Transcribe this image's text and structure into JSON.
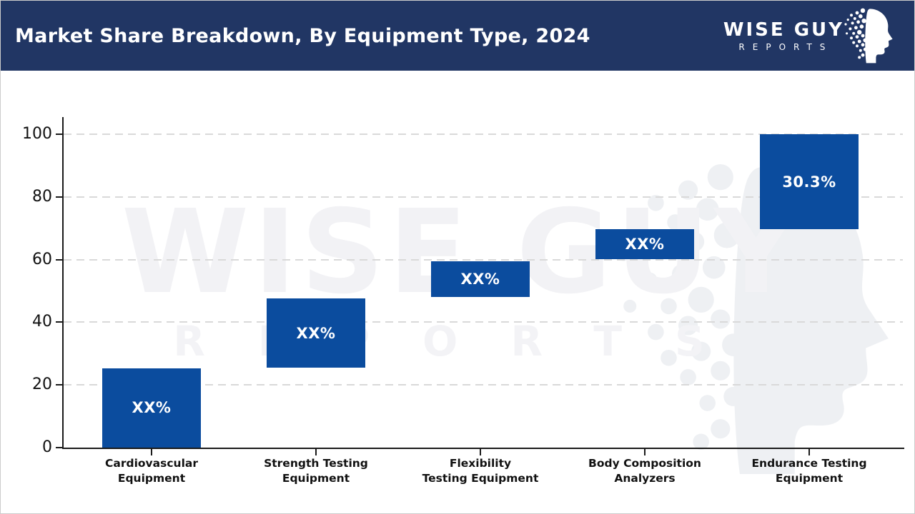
{
  "header": {
    "title": "Market Share Breakdown, By Equipment Type, 2024",
    "brand": {
      "line1": "WISE GUY",
      "line2": "REPORTS"
    }
  },
  "watermark": {
    "line1": "WISE GUY",
    "line2": "REPORTS"
  },
  "colors": {
    "header_bg": "#213664",
    "bar": "#0b4c9e",
    "bar_label_text": "#ffffff",
    "gridline": "#d9d9d9",
    "axis": "#1a1a1a",
    "watermark": "#f2f2f5"
  },
  "chart_data": {
    "type": "bar",
    "variant": "waterfall",
    "title": "Market Share Breakdown, By Equipment Type, 2024",
    "categories": [
      "Cardiovascular Equipment",
      "Strength Testing Equipment",
      "Flexibility Testing Equipment",
      "Body Composition Analyzers",
      "Endurance Testing Equipment"
    ],
    "category_label_lines": [
      "Cardiovascular\nEquipment",
      "Strength Testing\nEquipment",
      "Flexibility\nTesting Equipment",
      "Body Composition\nAnalyzers",
      "Endurance Testing\nEquipment"
    ],
    "segments": [
      {
        "category": "Cardiovascular Equipment",
        "start": 0,
        "end": 25.3,
        "label": "XX%"
      },
      {
        "category": "Strength Testing Equipment",
        "start": 25.5,
        "end": 47.6,
        "label": "XX%"
      },
      {
        "category": "Flexibility Testing Equipment",
        "start": 48.0,
        "end": 59.4,
        "label": "XX%"
      },
      {
        "category": "Body Composition Analyzers",
        "start": 60.1,
        "end": 69.7,
        "label": "XX%"
      },
      {
        "category": "Endurance Testing Equipment",
        "start": 69.7,
        "end": 100.0,
        "label": "30.3%"
      }
    ],
    "yticks": [
      0,
      20,
      40,
      60,
      80,
      100
    ],
    "ylim": [
      0,
      100
    ],
    "xlabel": "",
    "ylabel": "",
    "grid": {
      "horizontal": true,
      "style": "dashed"
    },
    "legend": "none"
  }
}
